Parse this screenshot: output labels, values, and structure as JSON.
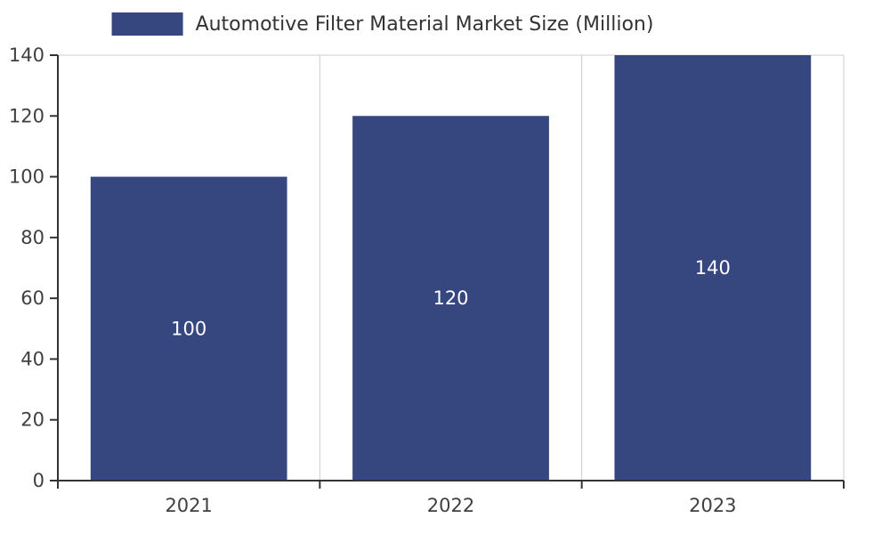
{
  "chart_data": {
    "type": "bar",
    "title": "Automotive Filter Material Market Size (Million)",
    "categories": [
      "2021",
      "2022",
      "2023"
    ],
    "values": [
      100,
      120,
      140
    ],
    "data_labels": [
      "100",
      "120",
      "140"
    ],
    "xlabel": "",
    "ylabel": "",
    "ylim": [
      0,
      140
    ],
    "yticks": [
      0,
      20,
      40,
      60,
      80,
      100,
      120,
      140
    ],
    "legend_position": "top",
    "grid": "vertical-category-separators",
    "colors": {
      "bar": "#36467e",
      "bar_value_label": "#ffffff",
      "axis_line": "#333333",
      "tick_label": "#404040",
      "gridline": "#cccccc",
      "legend_text": "#333333"
    }
  }
}
